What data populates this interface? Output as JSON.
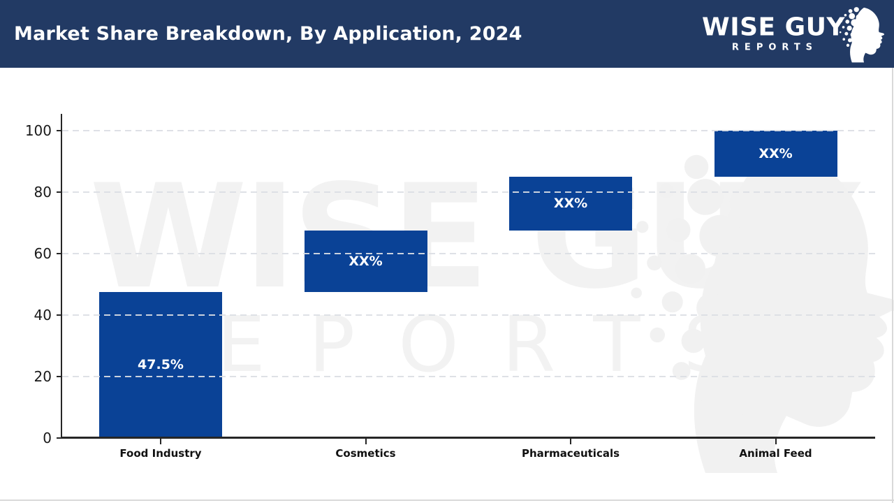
{
  "header": {
    "title": "Market Share Breakdown, By Application, 2024",
    "bg_color": "#223A64",
    "logo": {
      "wordmark": "WISE GUY",
      "subtext": "REPORTS"
    }
  },
  "watermark": {
    "wordmark": "WISE GUY",
    "subtext": "REPORTS"
  },
  "chart_data": {
    "type": "bar",
    "subtype": "waterfall",
    "title": "Market Share Breakdown, By Application, 2024",
    "categories": [
      "Food Industry",
      "Cosmetics",
      "Pharmaceuticals",
      "Animal Feed"
    ],
    "series": [
      {
        "name": "Market Share",
        "segments": [
          {
            "category": "Food Industry",
            "start": 0,
            "end": 47.5,
            "label": "47.5%"
          },
          {
            "category": "Cosmetics",
            "start": 47.5,
            "end": 67.5,
            "label": "XX%"
          },
          {
            "category": "Pharmaceuticals",
            "start": 67.5,
            "end": 85,
            "label": "XX%"
          },
          {
            "category": "Animal Feed",
            "start": 85,
            "end": 100,
            "label": "XX%"
          }
        ]
      }
    ],
    "xlabel": "",
    "ylabel": "",
    "ylim": [
      0,
      100
    ],
    "yticks": [
      0,
      20,
      40,
      60,
      80,
      100
    ],
    "grid": "horizontal-dashed",
    "legend": "none",
    "bar_color": "#0A4296",
    "bar_label_color": "#FFFFFF",
    "axis_color": "#262626",
    "gridline_color": "#DBDEE4"
  }
}
